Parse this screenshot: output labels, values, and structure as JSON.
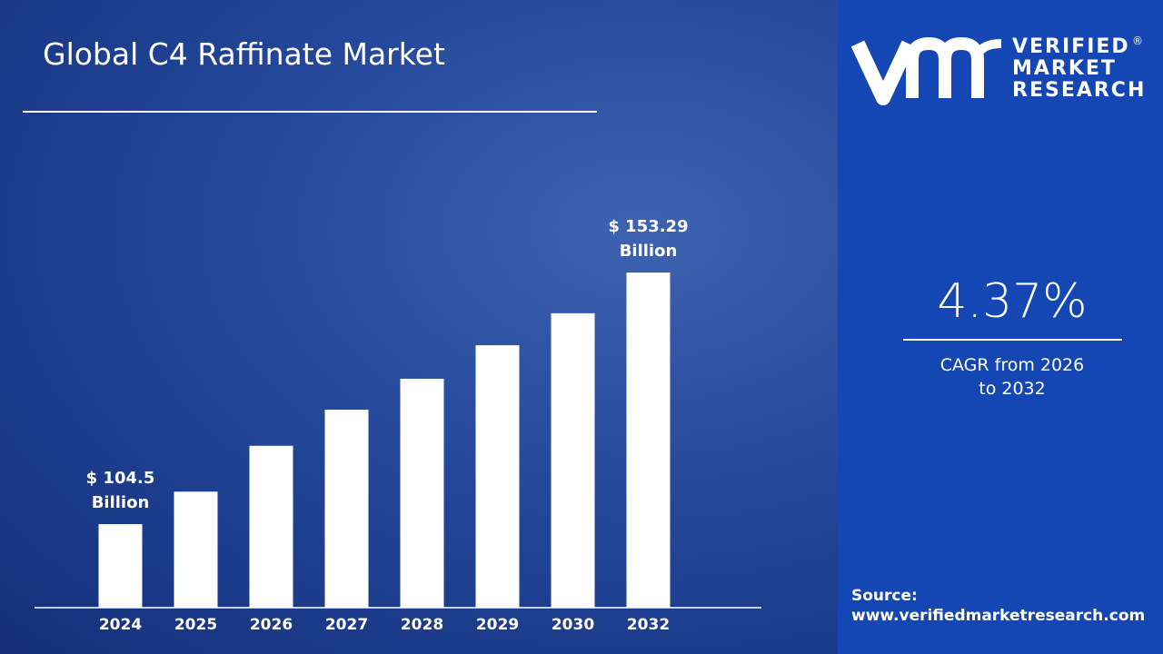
{
  "chart_data": {
    "type": "bar",
    "title": "Global C4 Raffinate Market",
    "categories": [
      "2024",
      "2025",
      "2026",
      "2027",
      "2028",
      "2029",
      "2030",
      "2032"
    ],
    "values": [
      104.5,
      110.8,
      119.7,
      126.7,
      132.7,
      139.2,
      145.4,
      153.29
    ],
    "value_labels": [
      "$ 104.5 Billion",
      null,
      null,
      null,
      null,
      null,
      null,
      "$ 153.29 Billion"
    ],
    "color": "#ffffff",
    "ylim": [
      88.3,
      160
    ]
  },
  "sidebar": {
    "brand": [
      "VERIFIED",
      "MARKET",
      "RESEARCH"
    ],
    "registered": "®",
    "cagr_value": "4.37%",
    "cagr_label": "CAGR from 2026 to 2032",
    "source_label": "Source:",
    "source_url": "www.verifiedmarketresearch.com"
  }
}
